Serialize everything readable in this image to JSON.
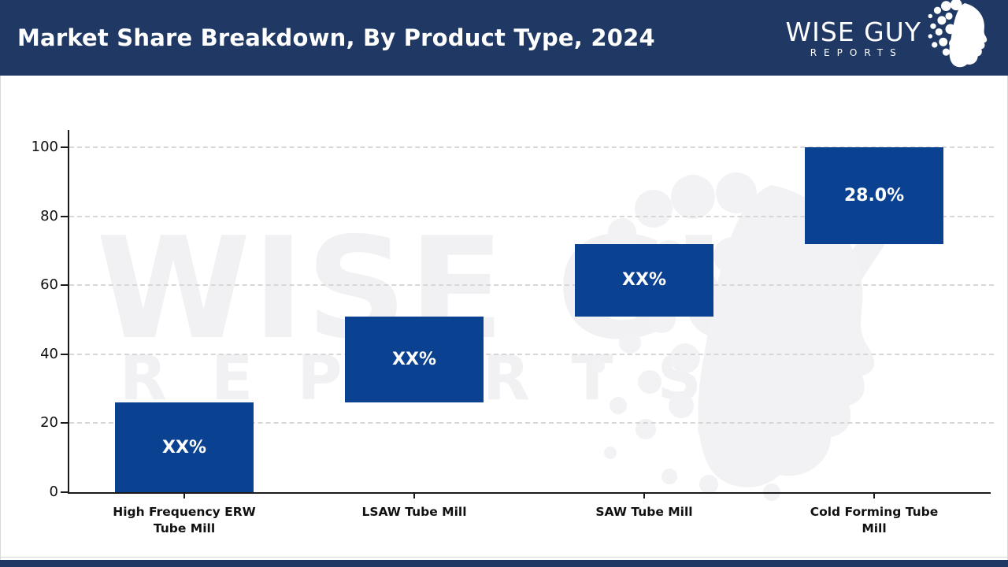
{
  "header": {
    "title": "Market Share Breakdown, By Product Type, 2024",
    "logo": {
      "line1": "WISE GUY",
      "line2": "REPORTS"
    }
  },
  "watermark": {
    "line1": "WISE GUY",
    "line2": "REPORTS"
  },
  "colors": {
    "header_bg": "#1f3864",
    "footer_bg": "#1f3864",
    "bar": "#0a4191",
    "bar_label": "#ffffff",
    "grid": "#d7d7d7",
    "axis": "#1a1a1a",
    "watermark": "#f1f1f4"
  },
  "chart_data": {
    "type": "bar",
    "variant": "waterfall",
    "title": "Market Share Breakdown, By Product Type, 2024",
    "categories": [
      "High Frequency ERW Tube Mill",
      "LSAW Tube Mill",
      "SAW Tube Mill",
      "Cold Forming Tube Mill"
    ],
    "category_label_lines": [
      [
        "High Frequency ERW",
        "Tube Mill"
      ],
      [
        "LSAW Tube Mill"
      ],
      [
        "SAW Tube Mill"
      ],
      [
        "Cold Forming Tube",
        "Mill"
      ]
    ],
    "segments": [
      {
        "category": "High Frequency ERW Tube Mill",
        "start": 0,
        "end": 26,
        "label": "XX%"
      },
      {
        "category": "LSAW Tube Mill",
        "start": 26,
        "end": 51,
        "label": "XX%"
      },
      {
        "category": "SAW Tube Mill",
        "start": 51,
        "end": 72,
        "label": "XX%"
      },
      {
        "category": "Cold Forming Tube Mill",
        "start": 72,
        "end": 100,
        "label": "28.0%",
        "value_shown": 28.0
      }
    ],
    "xlabel": "",
    "ylabel": "",
    "ylim": [
      0,
      100
    ],
    "yticks": [
      0,
      20,
      40,
      60,
      80,
      100
    ],
    "grid": "horizontal-dashed",
    "legend": "none"
  }
}
